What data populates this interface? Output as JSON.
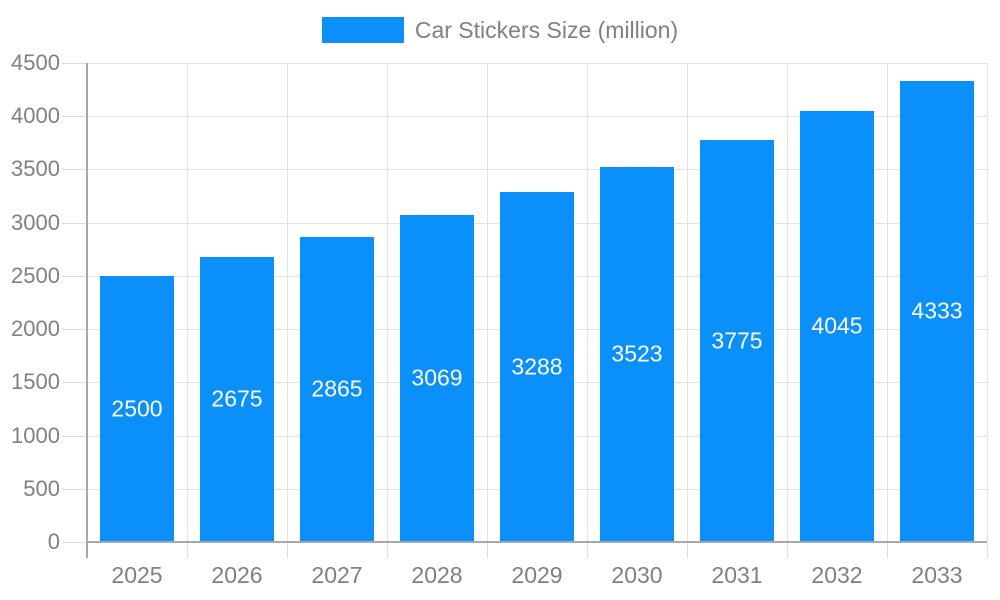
{
  "legend": {
    "label": "Car Stickers Size (million)"
  },
  "chart_data": {
    "type": "bar",
    "title": "Car Stickers Size (million)",
    "series_name": "Car Stickers Size (million)",
    "categories": [
      "2025",
      "2026",
      "2027",
      "2028",
      "2029",
      "2030",
      "2031",
      "2032",
      "2033"
    ],
    "values": [
      2500,
      2675,
      2865,
      3069,
      3288,
      3523,
      3775,
      4045,
      4333
    ],
    "data_labels": [
      "2500",
      "2675",
      "2865",
      "3069",
      "3288",
      "3523",
      "3775",
      "4045",
      "4333"
    ],
    "xlabel": "",
    "ylabel": "",
    "ylim": [
      0,
      4500
    ],
    "ytick_step": 500,
    "yticks": [
      0,
      500,
      1000,
      1500,
      2000,
      2500,
      3000,
      3500,
      4000,
      4500
    ],
    "ytick_labels": [
      "0",
      "500",
      "1000",
      "1500",
      "2000",
      "2500",
      "3000",
      "3500",
      "4000",
      "4500"
    ],
    "grid": true,
    "legend_position": "top"
  },
  "colors": {
    "bar": "#0a90f8",
    "bar_label_text": "#ffffff",
    "axis_text": "#808080",
    "legend_text": "#808080",
    "gridline": "#e3e3e3",
    "tick": "#dcdcdc",
    "axis_line": "#a8a8a8",
    "background": "#ffffff"
  }
}
